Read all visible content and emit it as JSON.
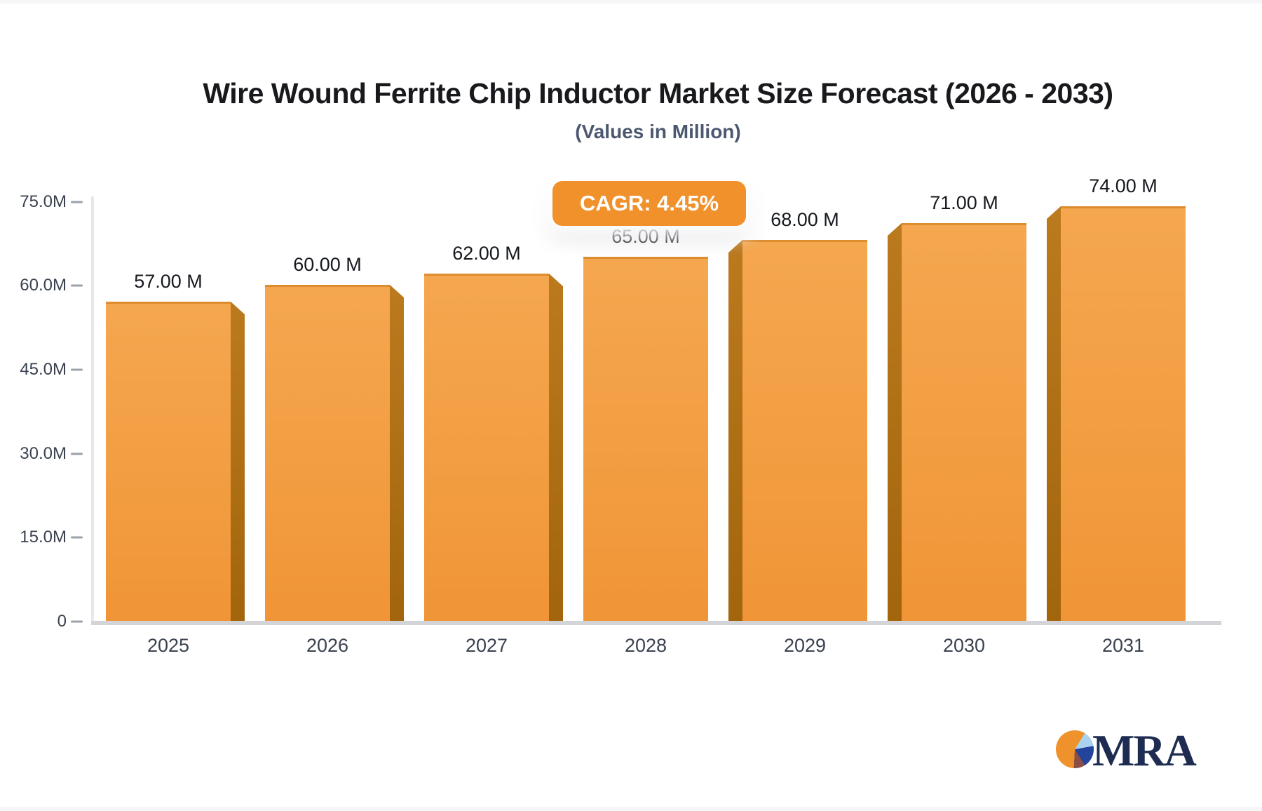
{
  "header": {
    "title": "Wire Wound Ferrite Chip Inductor Market Size Forecast (2026 - 2033)",
    "subtitle": "(Values in Million)"
  },
  "cagr_badge": {
    "label": "CAGR: 4.45%"
  },
  "chart_data": {
    "type": "bar",
    "title": "Wire Wound Ferrite Chip Inductor Market Size Forecast (2026 - 2033)",
    "subtitle": "(Values in Million)",
    "unit": "Million",
    "categories": [
      "2025",
      "2026",
      "2027",
      "2028",
      "2029",
      "2030",
      "2031"
    ],
    "values": [
      57,
      60,
      62,
      65,
      68,
      71,
      74
    ],
    "value_labels": [
      "57.00 M",
      "60.00 M",
      "62.00 M",
      "65.00 M",
      "68.00 M",
      "71.00 M",
      "74.00 M"
    ],
    "cagr_percent": 4.45,
    "ylim": [
      0,
      75
    ],
    "ytick_values": [
      75,
      60,
      45,
      30,
      15,
      0
    ],
    "ytick_labels": [
      "75.0M",
      "60.0M",
      "45.0M",
      "30.0M",
      "15.0M",
      "0"
    ],
    "grid": false,
    "legend": false,
    "colors": {
      "bar_top": "#f5a74f",
      "bar_bottom": "#f09537",
      "bar_side": "#b06f14",
      "badge": "#f0912b",
      "axis": "#d2d4d7",
      "label_text": "#3a4250"
    }
  },
  "logo": {
    "text": "MRA",
    "colors": {
      "orange": "#f0922b",
      "light_blue": "#a9d3ee",
      "dark_blue": "#24439b",
      "maroon": "#8b4f44",
      "text": "#1e2c52"
    }
  }
}
